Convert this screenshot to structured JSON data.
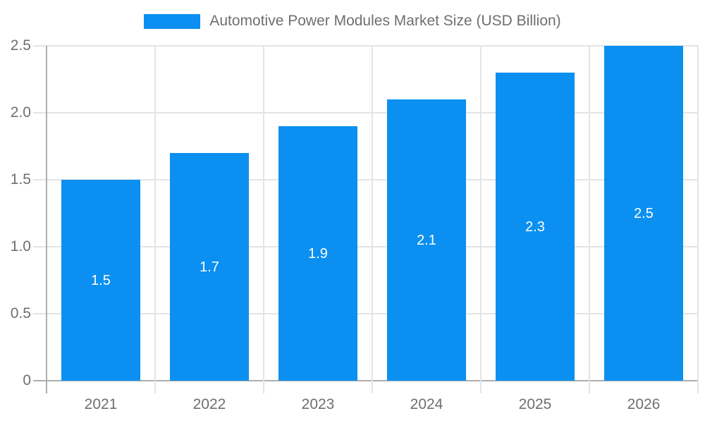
{
  "legend": {
    "label": "Automotive Power Modules Market Size (USD Billion)"
  },
  "chart_data": {
    "type": "bar",
    "title": "Automotive Power Modules Market Size (USD Billion)",
    "categories": [
      "2021",
      "2022",
      "2023",
      "2024",
      "2025",
      "2026"
    ],
    "values": [
      1.5,
      1.7,
      1.9,
      2.1,
      2.3,
      2.5
    ],
    "bar_labels": [
      "1.5",
      "1.7",
      "1.9",
      "2.1",
      "2.3",
      "2.5"
    ],
    "xlabel": "",
    "ylabel": "",
    "ylim": [
      0,
      2.5
    ],
    "ytick_values": [
      0,
      0.5,
      1.0,
      1.5,
      2.0,
      2.5
    ],
    "ytick_labels": [
      "0",
      "0.5",
      "1.0",
      "1.5",
      "2.0",
      "2.5"
    ],
    "grid": true,
    "legend_position": "top-center",
    "bar_value_label_position": "inside-center"
  },
  "colors": {
    "bar": "#0b90f1",
    "grid": "#e4e4e4",
    "axis": "#aeaeae",
    "tick_label": "#6f6f6f",
    "legend_text": "#6f6f6f",
    "bar_label": "#ffffff",
    "background": "#ffffff"
  }
}
